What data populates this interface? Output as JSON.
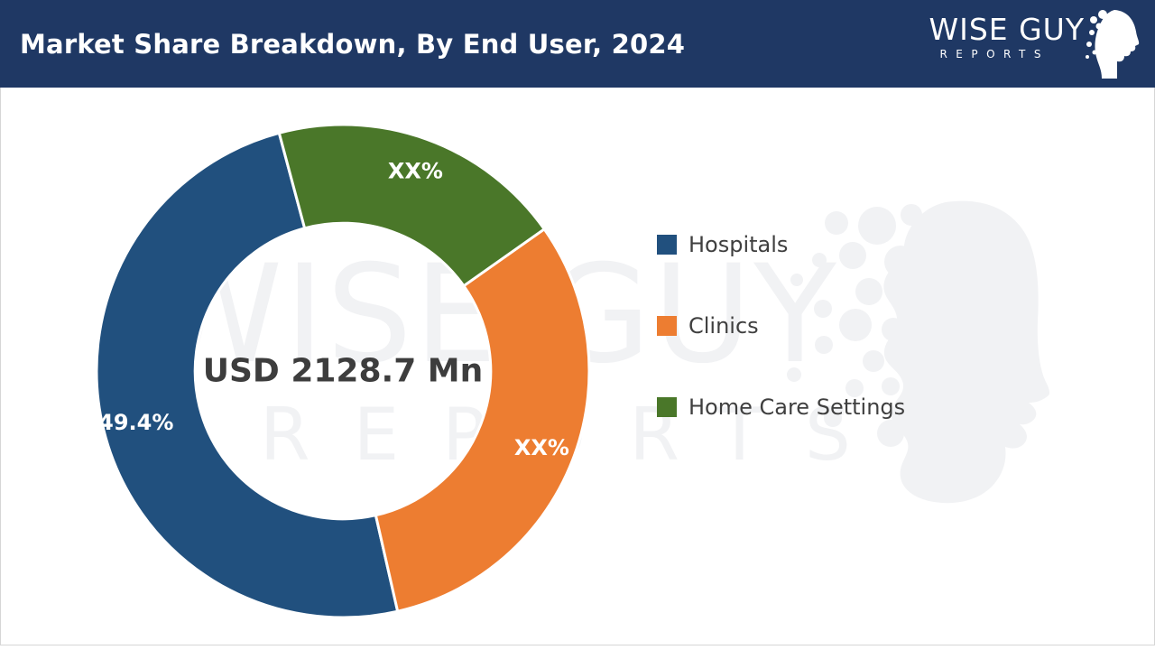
{
  "header": {
    "title": "Market Share Breakdown, By End User, 2024",
    "logo_line1": "WISE GUY",
    "logo_line2": "REPORTS"
  },
  "watermark": {
    "line1": "WISE GUY",
    "line2": "REPORTS"
  },
  "chart_data": {
    "type": "pie",
    "subtype": "donut",
    "title": "Market Share Breakdown, By End User, 2024",
    "center_label": "USD 2128.7 Mn",
    "start_angle_deg": 105,
    "direction": "counterclockwise",
    "inner_radius_ratio": 0.6,
    "legend_position": "right",
    "slices": [
      {
        "name": "Hospitals",
        "display_label": "49.4%",
        "value_pct": 49.4,
        "color": "#21507E"
      },
      {
        "name": "Clinics",
        "display_label": "XX%",
        "value_pct": 31.2,
        "color": "#ED7D31"
      },
      {
        "name": "Home Care Settings",
        "display_label": "XX%",
        "value_pct": 19.4,
        "color": "#4A7729"
      }
    ]
  }
}
